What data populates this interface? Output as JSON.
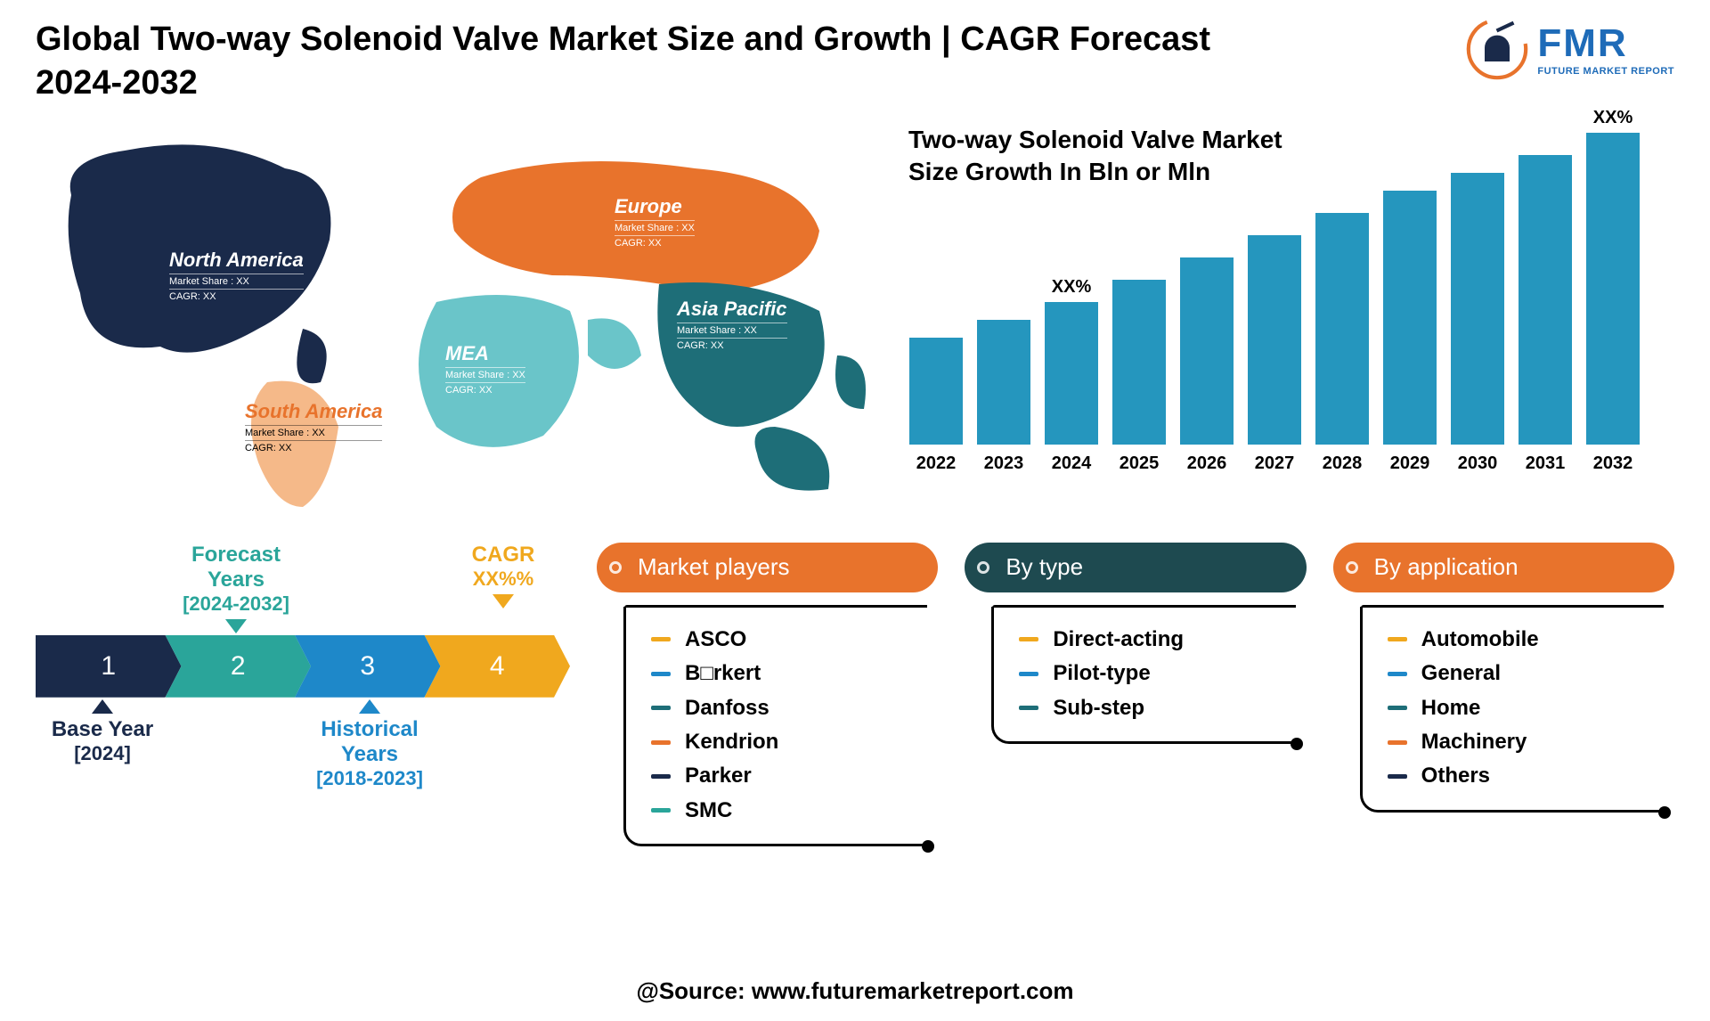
{
  "title": "Global Two-way Solenoid Valve Market Size and Growth | CAGR Forecast 2024-2032",
  "logo": {
    "main": "FMR",
    "sub": "FUTURE MARKET REPORT"
  },
  "map": {
    "regions": [
      {
        "name": "North America",
        "share": "Market Share : XX",
        "cagr": "CAGR: XX",
        "color": "#1a2a4a"
      },
      {
        "name": "South America",
        "share": "Market Share : XX",
        "cagr": "CAGR: XX",
        "color": "#f5b989"
      },
      {
        "name": "Europe",
        "share": "Market Share : XX",
        "cagr": "CAGR: XX",
        "color": "#e8732c"
      },
      {
        "name": "MEA",
        "share": "Market Share : XX",
        "cagr": "CAGR: XX",
        "color": "#6ac5c9"
      },
      {
        "name": "Asia Pacific",
        "share": "Market Share : XX",
        "cagr": "CAGR: XX",
        "color": "#1e6e78"
      }
    ]
  },
  "chart": {
    "title": "Two-way Solenoid Valve Market Size Growth In Bln or Mln",
    "type": "bar",
    "years": [
      "2022",
      "2023",
      "2024",
      "2025",
      "2026",
      "2027",
      "2028",
      "2029",
      "2030",
      "2031",
      "2032"
    ],
    "values": [
      120,
      140,
      160,
      185,
      210,
      235,
      260,
      285,
      305,
      325,
      350
    ],
    "bar_color": "#2596be",
    "top_labels": {
      "2024": "XX%",
      "2032": "XX%"
    },
    "ymax": 360
  },
  "timeline": {
    "segments": [
      {
        "num": "1",
        "color": "#1a2a4a"
      },
      {
        "num": "2",
        "color": "#2aa59a"
      },
      {
        "num": "3",
        "color": "#1e88c9"
      },
      {
        "num": "4",
        "color": "#f0a81e"
      }
    ],
    "labels": {
      "base": {
        "title": "Base Year",
        "sub": "[2024]",
        "color": "#1a2a4a"
      },
      "forecast": {
        "title": "Forecast Years",
        "sub": "[2024-2032]",
        "color": "#2aa59a"
      },
      "historic": {
        "title": "Historical Years",
        "sub": "[2018-2023]",
        "color": "#1e88c9"
      },
      "cagr": {
        "title": "CAGR",
        "sub": "XX%%",
        "color": "#f0a81e"
      }
    }
  },
  "sections": {
    "players": {
      "title": "Market players",
      "pill_color": "#e8732c",
      "items": [
        "ASCO",
        "B□rkert",
        "Danfoss",
        "Kendrion",
        "Parker",
        "SMC"
      ],
      "dash_colors": [
        "#f0a81e",
        "#1e88c9",
        "#1e6e78",
        "#e8732c",
        "#1a2a4a",
        "#2aa59a"
      ]
    },
    "type": {
      "title": "By type",
      "pill_color": "#1e4a50",
      "items": [
        "Direct-acting",
        "Pilot-type",
        "Sub-step"
      ],
      "dash_colors": [
        "#f0a81e",
        "#1e88c9",
        "#1e6e78"
      ]
    },
    "application": {
      "title": "By application",
      "pill_color": "#e8732c",
      "items": [
        "Automobile",
        "General",
        "Home",
        "Machinery",
        "Others"
      ],
      "dash_colors": [
        "#f0a81e",
        "#1e88c9",
        "#1e6e78",
        "#e8732c",
        "#1a2a4a"
      ]
    }
  },
  "source": "@Source: www.futuremarketreport.com"
}
